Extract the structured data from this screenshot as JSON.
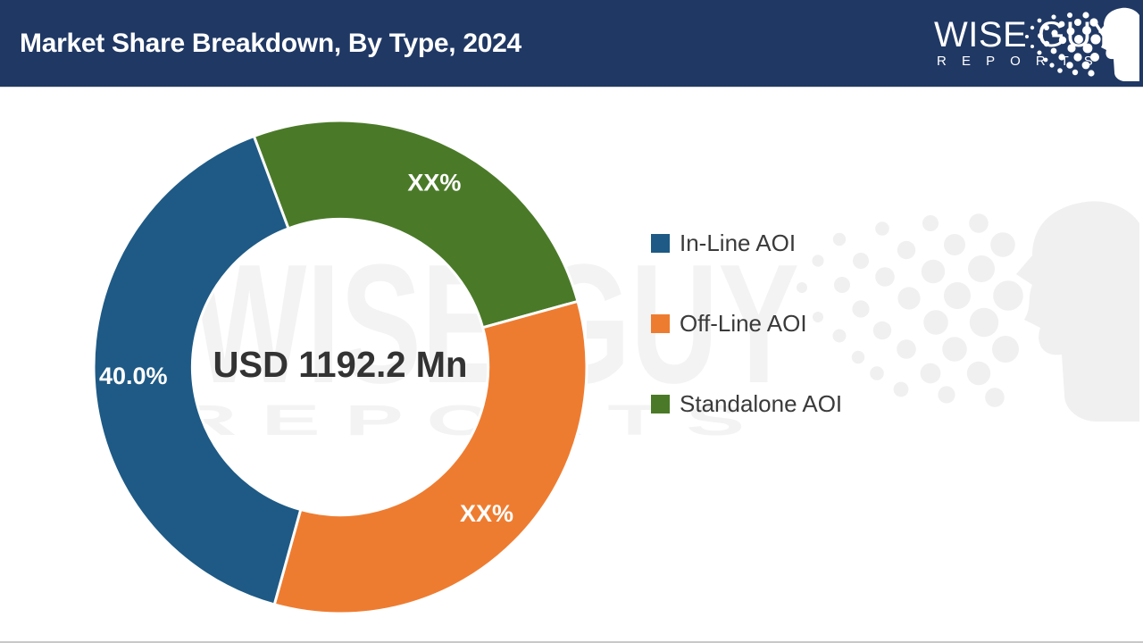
{
  "header": {
    "title": "Market Share Breakdown, By Type, 2024",
    "background_color": "#203864",
    "brand": {
      "name": "WISE GUY REPORTS",
      "line1": "WISE GUY",
      "line2": "R E P O R T S",
      "face_icon": "dotted-head-profile"
    }
  },
  "watermark": {
    "line1": "WISE GUY",
    "line2": "R E P O R T S",
    "face_icon": "dotted-head-profile"
  },
  "chart_data": {
    "type": "donut",
    "title": "Market Share Breakdown, By Type, 2024",
    "center_label": "USD 1192.2 Mn",
    "start_angle_compass_deg": -20.5,
    "draw_order": [
      2,
      1,
      0
    ],
    "inner_radius_ratio": 0.6,
    "legend_position": "right",
    "segments": [
      {
        "name": "In-Line AOI",
        "label": "40.0%",
        "value_pct": 40.0,
        "color": "#1E5A85"
      },
      {
        "name": "Off-Line AOI",
        "label": "XX%",
        "value_pct": 33.6,
        "color": "#EE7C30"
      },
      {
        "name": "Standalone AOI",
        "label": "XX%",
        "value_pct": 26.4,
        "color": "#4A7A28"
      }
    ],
    "colors": {
      "center_label_text": "#333333",
      "segment_label_text": "#ffffff",
      "watermark_gray": "#f3f3f3"
    }
  }
}
